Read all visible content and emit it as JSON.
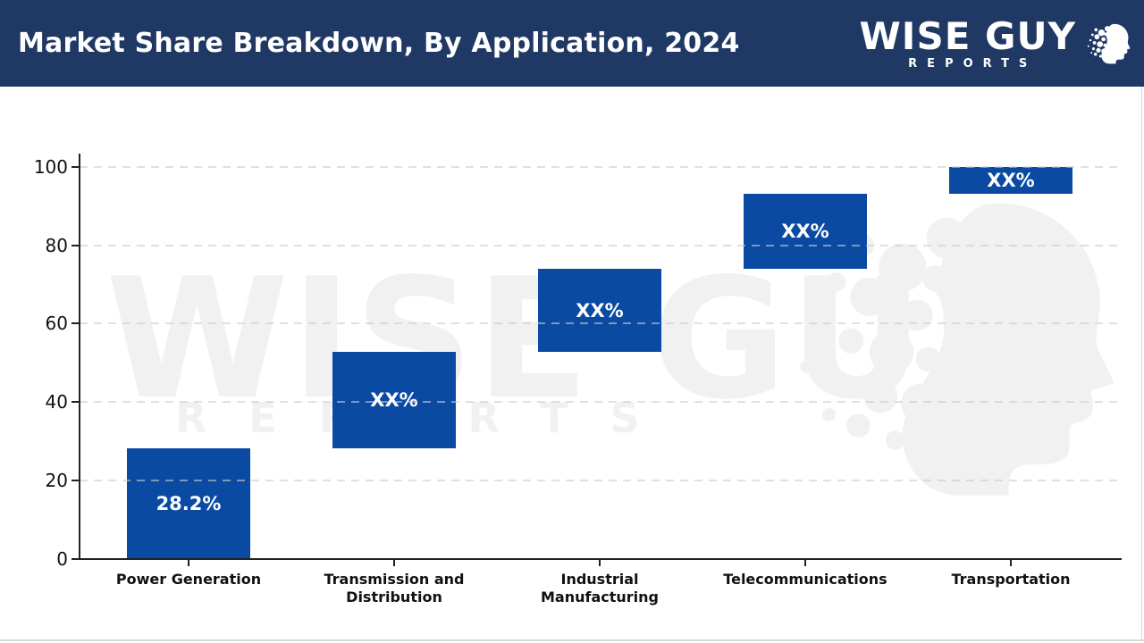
{
  "header": {
    "title": "Market Share Breakdown, By Application, 2024",
    "bg_color": "#1f3864",
    "logo": {
      "name": "WISE GUY",
      "sub": "REPORTS"
    }
  },
  "watermark": {
    "name": "WISE GUY",
    "sub": "REPORTS"
  },
  "chart_data": {
    "type": "bar",
    "subtype": "waterfall",
    "title": "Market Share Breakdown, By Application, 2024",
    "xlabel": "",
    "ylabel": "",
    "ylim": [
      0,
      105
    ],
    "y_ticks": [
      0,
      20,
      40,
      60,
      80,
      100
    ],
    "grid": "horizontal-dashed",
    "legend": "none",
    "bar_color": "#0b4aa2",
    "label_color": "#ffffff",
    "categories": [
      "Power Generation",
      "Transmission and Distribution",
      "Industrial Manufacturing",
      "Telecommunications",
      "Transportation"
    ],
    "category_lines": [
      [
        "Power Generation"
      ],
      [
        "Transmission and",
        "Distribution"
      ],
      [
        "Industrial",
        "Manufacturing"
      ],
      [
        "Telecommunications"
      ],
      [
        "Transportation"
      ]
    ],
    "segments": [
      {
        "category": "Power Generation",
        "start": 0,
        "end": 28.2,
        "value_label": "28.2%"
      },
      {
        "category": "Transmission and Distribution",
        "start": 28.2,
        "end": 52.8,
        "value_label": "XX%"
      },
      {
        "category": "Industrial Manufacturing",
        "start": 52.8,
        "end": 73.9,
        "value_label": "XX%"
      },
      {
        "category": "Telecommunications",
        "start": 73.9,
        "end": 93.0,
        "value_label": "XX%"
      },
      {
        "category": "Transportation",
        "start": 93.0,
        "end": 100.0,
        "value_label": "XX%"
      }
    ]
  }
}
